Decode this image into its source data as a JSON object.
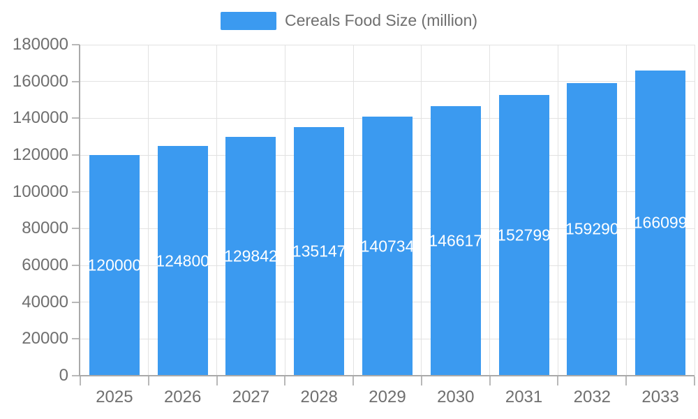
{
  "legend": {
    "label": "Cereals Food Size (million)"
  },
  "colors": {
    "bar": "#3b9af0",
    "bar_label": "#ffffff",
    "axis_label": "#6f6f6f",
    "legend_text": "#6f6f6f",
    "grid_line": "#e2e2e2",
    "axis_line": "#a9a9a9",
    "background": "#ffffff"
  },
  "chart_data": {
    "type": "bar",
    "title": "Cereals Food Size (million)",
    "categories": [
      "2025",
      "2026",
      "2027",
      "2028",
      "2029",
      "2030",
      "2031",
      "2032",
      "2033"
    ],
    "values": [
      120000,
      124800,
      129842,
      135147,
      140734,
      146617,
      152799,
      159290,
      166099
    ],
    "bar_labels": [
      "120000",
      "124800",
      "129842",
      "135147",
      "140734",
      "146617",
      "152799",
      "159290",
      "166099"
    ],
    "xlabel": "",
    "ylabel": "",
    "ylim": [
      0,
      180000
    ],
    "ytick_step": 20000,
    "ytick_labels": [
      "0",
      "20000",
      "40000",
      "60000",
      "80000",
      "100000",
      "120000",
      "140000",
      "160000",
      "180000"
    ],
    "grid": true,
    "legend_entries": [
      "Cereals Food Size (million)"
    ],
    "legend_position": "top-center",
    "bar_label_position": "inside-center"
  }
}
